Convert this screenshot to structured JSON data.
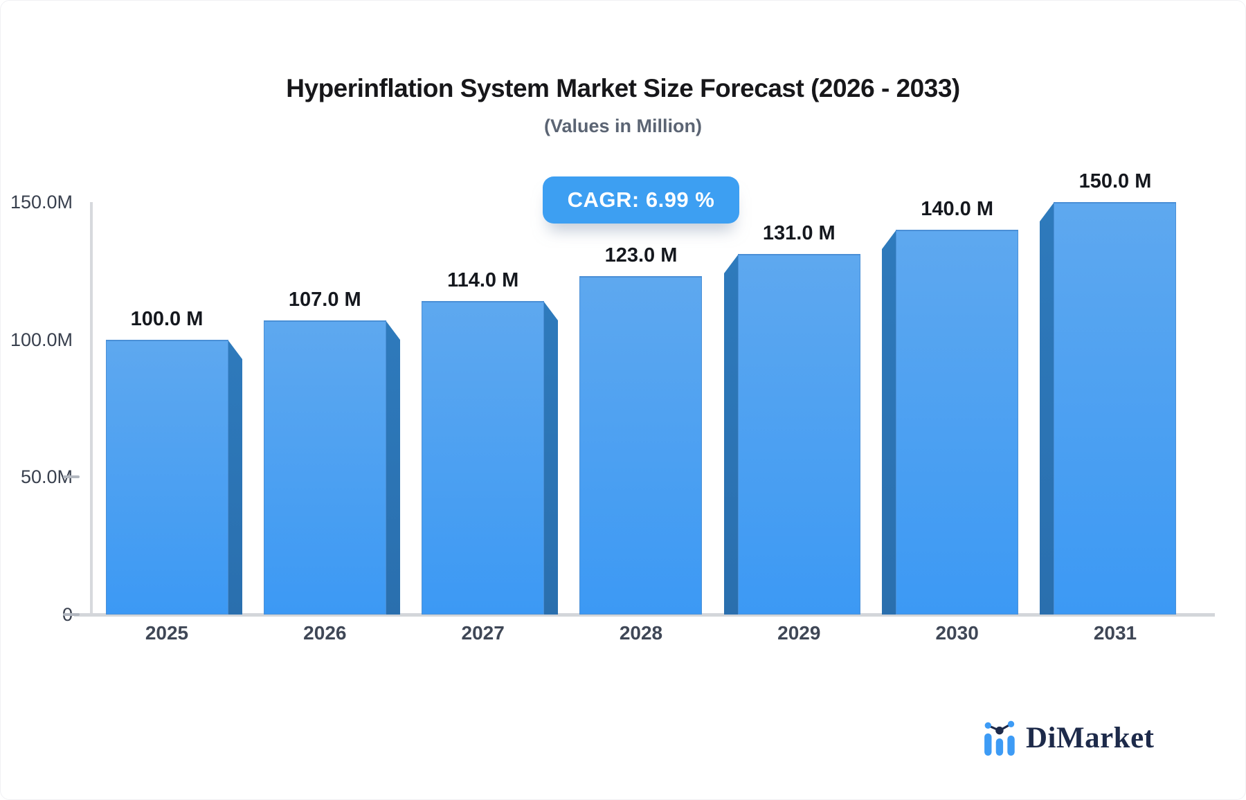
{
  "page": {
    "title": "Hyperinflation System Market Size Forecast (2026 - 2033)",
    "subtitle": "(Values in Million)",
    "cagr_badge": "CAGR: 6.99 %",
    "brand": "DiMarket"
  },
  "chart_data": {
    "type": "bar",
    "title": "Hyperinflation System Market Size Forecast (2026 - 2033)",
    "subtitle": "(Values in Million)",
    "values_unit": "Million",
    "categories": [
      "2025",
      "2026",
      "2027",
      "2028",
      "2029",
      "2030",
      "2031"
    ],
    "values": [
      100.0,
      107.0,
      114.0,
      123.0,
      131.0,
      140.0,
      150.0
    ],
    "value_labels": [
      "100.0 M",
      "107.0 M",
      "114.0 M",
      "123.0 M",
      "131.0 M",
      "140.0 M",
      "150.0 M"
    ],
    "cagr": "6.99 %",
    "ylim": [
      0,
      150
    ],
    "yticks": [
      {
        "value": 150,
        "label": "150.0M",
        "dash": false
      },
      {
        "value": 100,
        "label": "100.0M",
        "dash": false
      },
      {
        "value": 50,
        "label": "50.0M",
        "dash": true
      },
      {
        "value": 0,
        "label": "0",
        "dash": true
      }
    ],
    "grid": false,
    "legend": "none",
    "colors": {
      "bar_top": "#5ea8ef",
      "bar_bottom": "#3c99f4",
      "bar_edge": "#4a8fd6",
      "bar_side": "#2e7abc",
      "bar_side_dark": "#2a6fae",
      "badge_bg": "#3d9ff2",
      "axis_line": "#d7d9dd",
      "tick_text": "#39404e",
      "xlabel_text": "#3f4756",
      "value_text": "#15181e",
      "brand_navy": "#1d2a4a",
      "brand_blue": "#3d9bf5"
    }
  }
}
